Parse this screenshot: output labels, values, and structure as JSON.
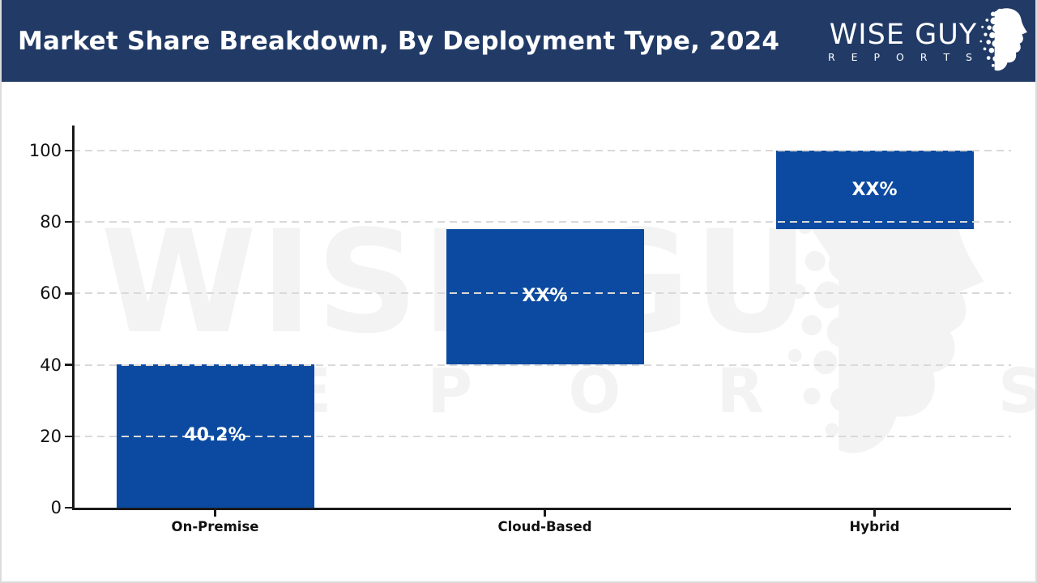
{
  "header": {
    "title": "Market Share Breakdown, By Deployment Type, 2024",
    "brand": {
      "line1": "WISE GUY",
      "line2": "R E P O R T S"
    }
  },
  "watermark": {
    "line1": "WISE GUY",
    "line2": "R E P O R T S"
  },
  "chart_data": {
    "type": "bar",
    "subtype": "waterfall",
    "title": "Market Share Breakdown, By Deployment Type, 2024",
    "categories": [
      "On-Premise",
      "Cloud-Based",
      "Hybrid"
    ],
    "bars": [
      {
        "category": "On-Premise",
        "start": 0,
        "end": 40.2,
        "label": "40.2%"
      },
      {
        "category": "Cloud-Based",
        "start": 40.2,
        "end": 78,
        "label": "XX%"
      },
      {
        "category": "Hybrid",
        "start": 78,
        "end": 100,
        "label": "XX%"
      }
    ],
    "ylim": [
      0,
      100
    ],
    "yticks": [
      0,
      20,
      40,
      60,
      80,
      100
    ],
    "grid": "horizontal-dashed",
    "legend": "none",
    "colors": {
      "bar": "#0b4aa0",
      "header_background": "#213a66",
      "title_text": "#ffffff",
      "bar_label_text": "#ffffff",
      "axis": "#1a1a1a",
      "tick_text": "#111111",
      "gridline": "#d9d9d9",
      "watermark": "#f3f3f3",
      "page_border": "#dcdcdc"
    }
  }
}
